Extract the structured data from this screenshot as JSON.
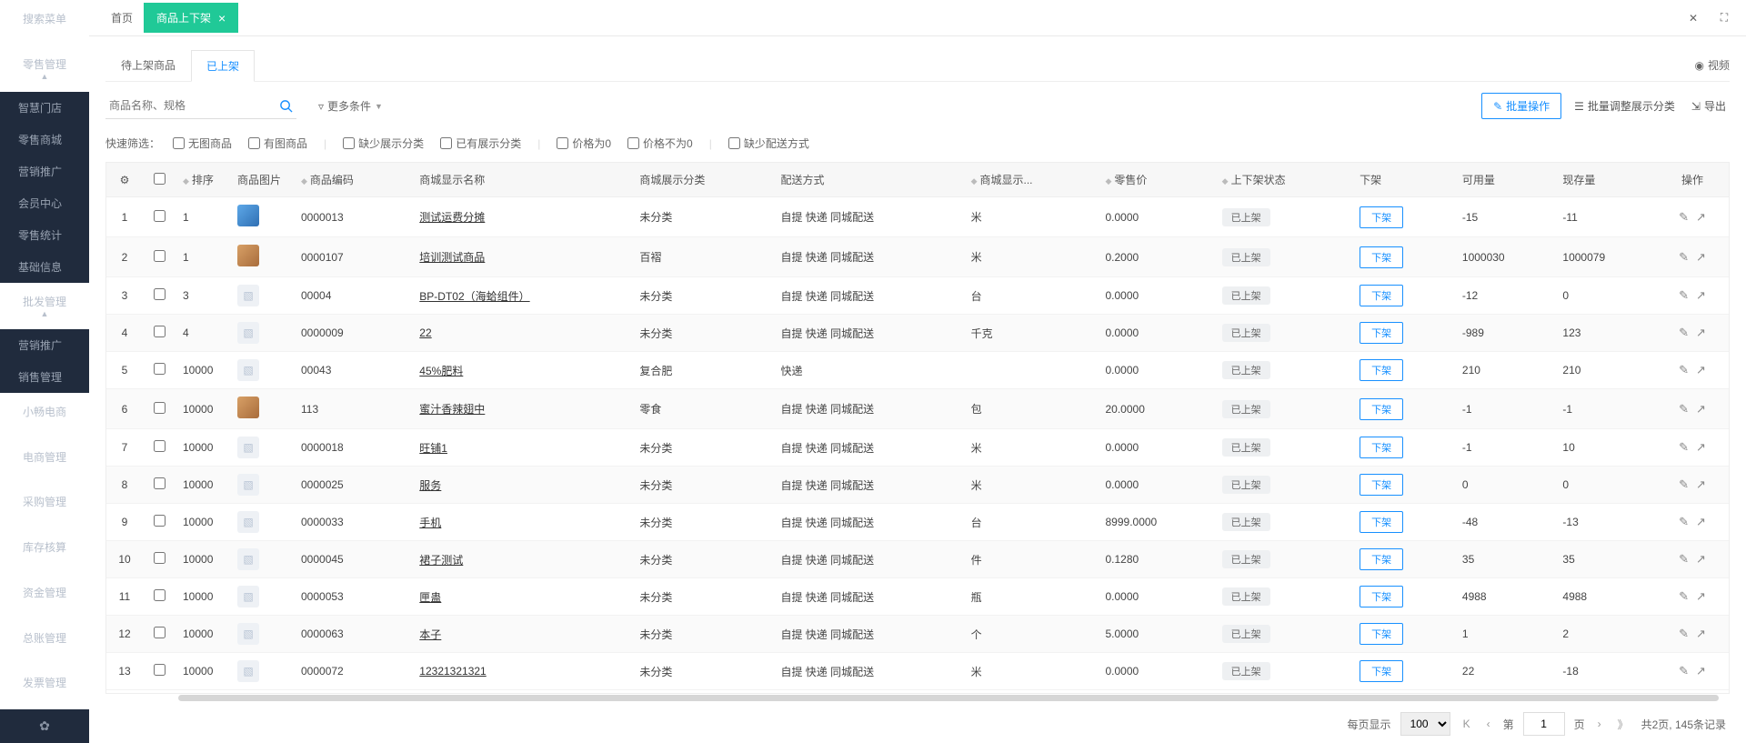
{
  "sidebar": {
    "items": [
      {
        "label": "搜索菜单",
        "type": "main"
      },
      {
        "label": "零售管理",
        "type": "main",
        "arrow": "▲"
      },
      {
        "label": "智慧门店",
        "type": "sub"
      },
      {
        "label": "零售商城",
        "type": "sub"
      },
      {
        "label": "营销推广",
        "type": "sub"
      },
      {
        "label": "会员中心",
        "type": "sub"
      },
      {
        "label": "零售统计",
        "type": "sub"
      },
      {
        "label": "基础信息",
        "type": "sub"
      },
      {
        "label": "批发管理",
        "type": "main",
        "arrow": "▲"
      },
      {
        "label": "营销推广",
        "type": "sub"
      },
      {
        "label": "销售管理",
        "type": "sub"
      },
      {
        "label": "小畅电商",
        "type": "main"
      },
      {
        "label": "电商管理",
        "type": "main"
      },
      {
        "label": "采购管理",
        "type": "main"
      },
      {
        "label": "库存核算",
        "type": "main"
      },
      {
        "label": "资金管理",
        "type": "main"
      },
      {
        "label": "总账管理",
        "type": "main"
      },
      {
        "label": "发票管理",
        "type": "main"
      }
    ]
  },
  "tabs": {
    "home": "首页",
    "active": "商品上下架"
  },
  "subtabs": {
    "pending": "待上架商品",
    "active": "已上架",
    "video": "视频"
  },
  "search": {
    "placeholder": "商品名称、规格"
  },
  "filterMore": "更多条件",
  "actions": {
    "batch": "批量操作",
    "adjust": "批量调整展示分类",
    "export": "导出"
  },
  "quickFilters": {
    "label": "快速筛选：",
    "items": [
      "无图商品",
      "有图商品",
      "缺少展示分类",
      "已有展示分类",
      "价格为0",
      "价格不为0",
      "缺少配送方式"
    ]
  },
  "columns": [
    "",
    "",
    "排序",
    "商品图片",
    "商品编码",
    "商城显示名称",
    "商城展示分类",
    "配送方式",
    "商城显示...",
    "零售价",
    "上下架状态",
    "下架",
    "可用量",
    "现存量",
    "操作"
  ],
  "statusLabel": "已上架",
  "btnLabel": "下架",
  "rows": [
    {
      "idx": "1",
      "sort": "1",
      "img": "blue",
      "code": "0000013",
      "name": "测试运费分摊",
      "cat": "未分类",
      "ship": "自提 快递 同城配送",
      "unit": "米",
      "price": "0.0000",
      "avail": "-15",
      "stock": "-11"
    },
    {
      "idx": "2",
      "sort": "1",
      "img": "photo",
      "code": "0000107",
      "name": "培训测试商品",
      "cat": "百褶",
      "ship": "自提 快递 同城配送",
      "unit": "米",
      "price": "0.2000",
      "avail": "1000030",
      "stock": "1000079"
    },
    {
      "idx": "3",
      "sort": "3",
      "img": "",
      "code": "00004",
      "name": "BP-DT02（海蛤组件）",
      "cat": "未分类",
      "ship": "自提 快递 同城配送",
      "unit": "台",
      "price": "0.0000",
      "avail": "-12",
      "stock": "0"
    },
    {
      "idx": "4",
      "sort": "4",
      "img": "",
      "code": "0000009",
      "name": "22",
      "cat": "未分类",
      "ship": "自提 快递 同城配送",
      "unit": "千克",
      "price": "0.0000",
      "avail": "-989",
      "stock": "123"
    },
    {
      "idx": "5",
      "sort": "10000",
      "img": "",
      "code": "00043",
      "name": "45%肥料",
      "cat": "复合肥",
      "ship": "快递",
      "unit": "",
      "price": "0.0000",
      "avail": "210",
      "stock": "210"
    },
    {
      "idx": "6",
      "sort": "10000",
      "img": "photo",
      "code": "113",
      "name": "蜜汁香辣翅中",
      "cat": "零食",
      "ship": "自提 快递 同城配送",
      "unit": "包",
      "price": "20.0000",
      "avail": "-1",
      "stock": "-1"
    },
    {
      "idx": "7",
      "sort": "10000",
      "img": "",
      "code": "0000018",
      "name": "旺铺1",
      "cat": "未分类",
      "ship": "自提 快递 同城配送",
      "unit": "米",
      "price": "0.0000",
      "avail": "-1",
      "stock": "10"
    },
    {
      "idx": "8",
      "sort": "10000",
      "img": "",
      "code": "0000025",
      "name": "服务",
      "cat": "未分类",
      "ship": "自提 快递 同城配送",
      "unit": "米",
      "price": "0.0000",
      "avail": "0",
      "stock": "0"
    },
    {
      "idx": "9",
      "sort": "10000",
      "img": "",
      "code": "0000033",
      "name": "手机",
      "cat": "未分类",
      "ship": "自提 快递 同城配送",
      "unit": "台",
      "price": "8999.0000",
      "avail": "-48",
      "stock": "-13"
    },
    {
      "idx": "10",
      "sort": "10000",
      "img": "",
      "code": "0000045",
      "name": "裙子测试",
      "cat": "未分类",
      "ship": "自提 快递 同城配送",
      "unit": "件",
      "price": "0.1280",
      "avail": "35",
      "stock": "35"
    },
    {
      "idx": "11",
      "sort": "10000",
      "img": "",
      "code": "0000053",
      "name": "匣蛊",
      "cat": "未分类",
      "ship": "自提 快递 同城配送",
      "unit": "瓶",
      "price": "0.0000",
      "avail": "4988",
      "stock": "4988"
    },
    {
      "idx": "12",
      "sort": "10000",
      "img": "",
      "code": "0000063",
      "name": "本子",
      "cat": "未分类",
      "ship": "自提 快递 同城配送",
      "unit": "个",
      "price": "5.0000",
      "avail": "1",
      "stock": "2"
    },
    {
      "idx": "13",
      "sort": "10000",
      "img": "",
      "code": "0000072",
      "name": "12321321321",
      "cat": "未分类",
      "ship": "自提 快递 同城配送",
      "unit": "米",
      "price": "0.0000",
      "avail": "22",
      "stock": "-18"
    }
  ],
  "pager": {
    "perPageLabel": "每页显示",
    "perPage": "100",
    "pageWord1": "第",
    "page": "1",
    "pageWord2": "页",
    "summary": "共2页, 145条记录"
  }
}
